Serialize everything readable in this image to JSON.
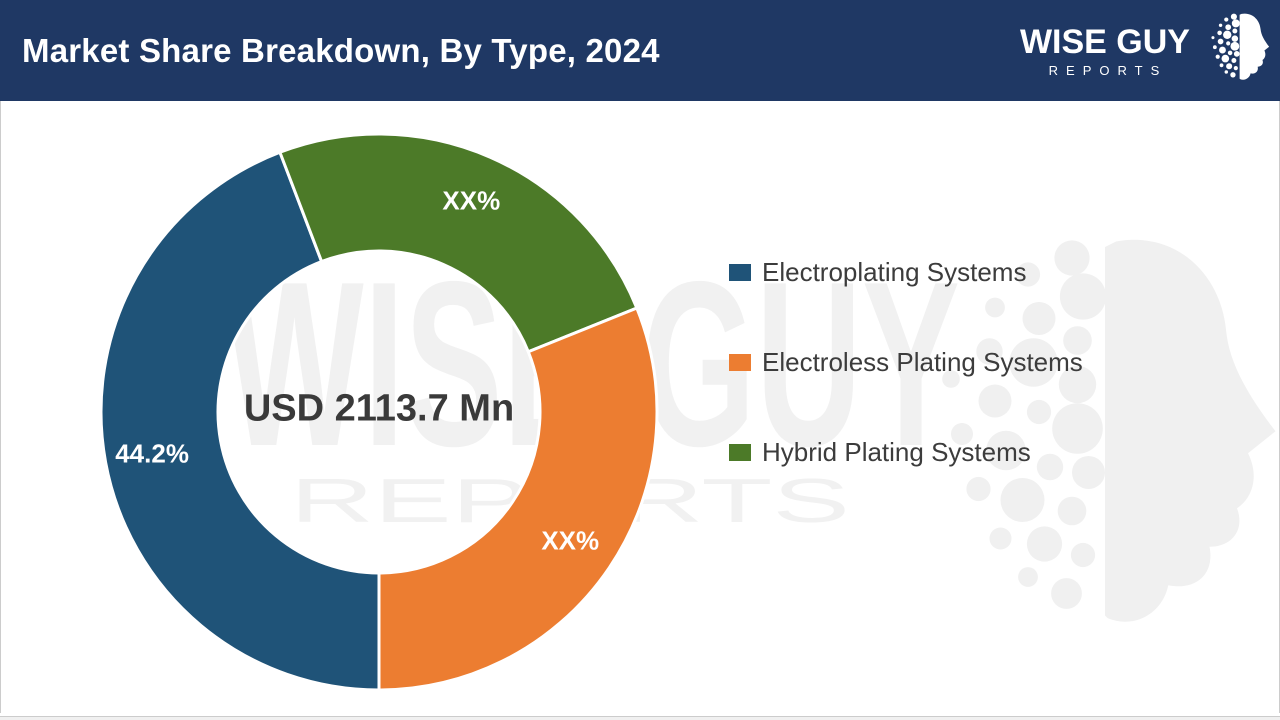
{
  "header": {
    "title": "Market Share Breakdown, By Type, 2024",
    "background_color": "#1f3864",
    "logo": {
      "line1": "WISE GUY",
      "line2": "REPORTS"
    }
  },
  "chart_data": {
    "type": "pie",
    "subtype": "donut",
    "title": "Market Share Breakdown, By Type, 2024",
    "center_label": "USD 2113.7 Mn",
    "start_angle_deg": 180,
    "direction": "clockwise",
    "segments": [
      {
        "name": "Electroplating Systems",
        "value_pct": 44.2,
        "label": "44.2%",
        "color": "#1f5378"
      },
      {
        "name": "Hybrid Plating Systems",
        "value_pct": 24.7,
        "label": "XX%",
        "color": "#4c7a28"
      },
      {
        "name": "Electroless Plating Systems",
        "value_pct": 31.1,
        "label": "XX%",
        "color": "#ec7d31"
      }
    ],
    "legend_position": "right",
    "legend": [
      {
        "label": "Electroplating Systems",
        "color": "#1f5378"
      },
      {
        "label": "Electroless Plating Systems",
        "color": "#ec7d31"
      },
      {
        "label": "Hybrid Plating Systems",
        "color": "#4c7a28"
      }
    ]
  },
  "watermark": {
    "line1": "WISE GUY",
    "line2": "REPORTS"
  }
}
